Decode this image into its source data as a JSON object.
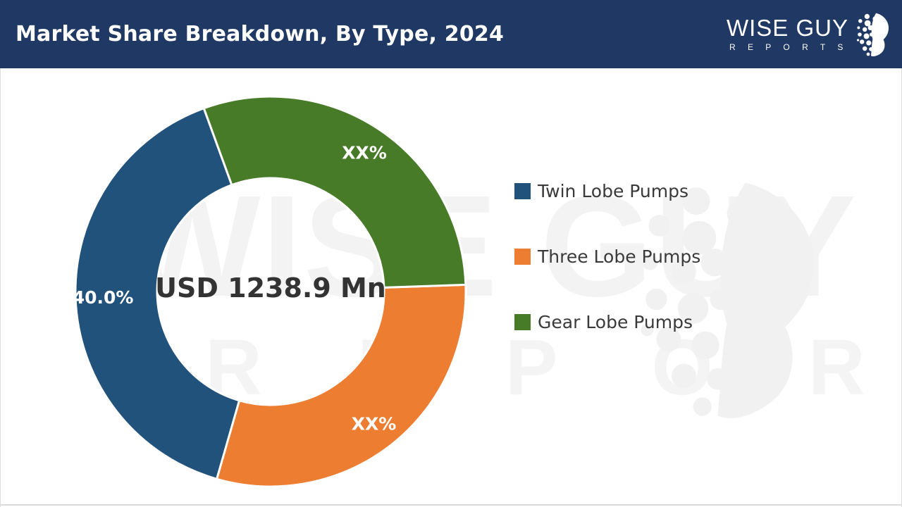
{
  "header": {
    "title": "Market Share Breakdown, By Type, 2024",
    "logo": {
      "name_line": "WISE GUY",
      "sub_line": "R E P O R T S"
    }
  },
  "watermark": {
    "name_line": "WISE GUY",
    "sub_line": "R E P O R T S"
  },
  "colors": {
    "header_bg": "#1F3864",
    "twin_lobe_blue": "#20527B",
    "three_lobe_orange": "#ED7D31",
    "gear_lobe_green": "#487B28",
    "center_text": "#333333",
    "legend_text": "#3A3A3A"
  },
  "chart_data": {
    "type": "pie",
    "subtype": "donut",
    "title": "Market Share Breakdown, By Type, 2024",
    "center_label": "USD 1238.9 Mn",
    "start_angle_deg": 110,
    "direction": "counterclockwise",
    "legend_position": "right",
    "segments": [
      {
        "label": "Twin Lobe Pumps",
        "value_pct": 40.0,
        "display_pct": "40.0%",
        "color": "#20527B"
      },
      {
        "label": "Three Lobe Pumps",
        "value_pct": 30.0,
        "display_pct": "XX%",
        "color": "#ED7D31"
      },
      {
        "label": "Gear Lobe Pumps",
        "value_pct": 30.0,
        "display_pct": "XX%",
        "color": "#487B28"
      }
    ]
  }
}
